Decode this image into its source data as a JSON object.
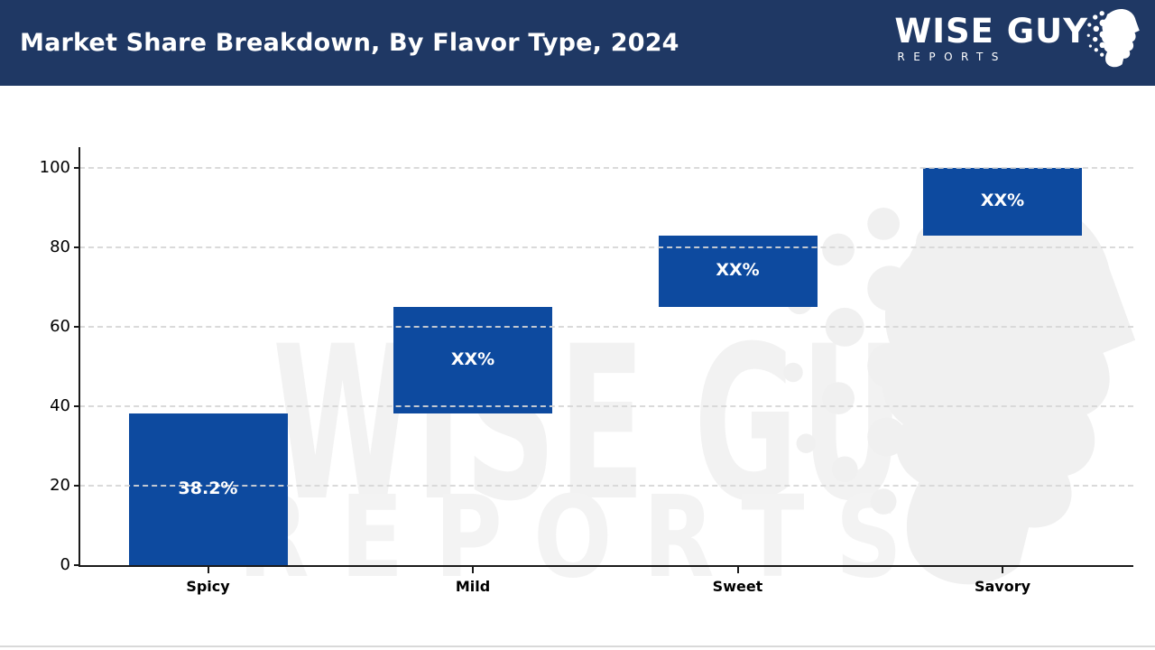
{
  "header": {
    "title": "Market Share Breakdown, By Flavor Type, 2024",
    "bg_color": "#1f3864",
    "logo": {
      "line1": "WISE GUY",
      "line2": "REPORTS"
    }
  },
  "watermark": {
    "line1": "WISE GUY",
    "line2": "REPORTS"
  },
  "chart_data": {
    "type": "bar",
    "subtype": "floating-waterfall",
    "title": "Market Share Breakdown, By Flavor Type, 2024",
    "categories": [
      "Spicy",
      "Mild",
      "Sweet",
      "Savory"
    ],
    "segments": [
      {
        "start": 0,
        "end": 38.2,
        "value": 38.2,
        "label": "38.2%"
      },
      {
        "start": 38.2,
        "end": 65,
        "value": 26.8,
        "label": "XX%"
      },
      {
        "start": 65,
        "end": 83,
        "value": 18,
        "label": "XX%"
      },
      {
        "start": 83,
        "end": 100,
        "value": 17,
        "label": "XX%"
      }
    ],
    "yticks": [
      0,
      20,
      40,
      60,
      80,
      100
    ],
    "ylim": [
      0,
      105
    ],
    "xlabel": "",
    "ylabel": "",
    "grid": "horizontal-dashed",
    "legend": "none",
    "bar_color": "#0d4a9f",
    "bar_label_color": "#ffffff",
    "axis_color": "#1a1a1a",
    "grid_color": "#d6d6d6"
  }
}
